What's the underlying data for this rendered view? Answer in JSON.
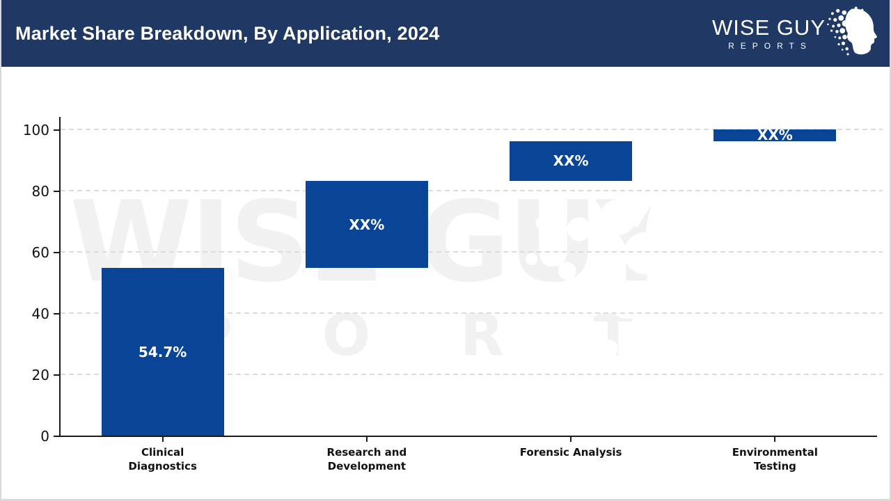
{
  "header": {
    "title": "Market Share Breakdown, By Application, 2024",
    "bg_color": "#203864",
    "logo": {
      "line1": "WISE GUY",
      "line2": "REPORTS"
    }
  },
  "watermark": {
    "line1": "WISE GUY",
    "line2": "P O R T S"
  },
  "chart_data": {
    "type": "bar",
    "subtype": "waterfall-stacked-to-100",
    "title": "Market Share Breakdown, By Application, 2024",
    "categories": [
      "Clinical Diagnostics",
      "Research and Development",
      "Forensic Analysis",
      "Environmental Testing"
    ],
    "category_label_lines": [
      [
        "Clinical",
        "Diagnostics"
      ],
      [
        "Research and",
        "Development"
      ],
      [
        "Forensic Analysis"
      ],
      [
        "Environmental",
        "Testing"
      ]
    ],
    "values": [
      54.7,
      28.5,
      13.0,
      3.8
    ],
    "segment_starts": [
      0,
      54.7,
      83.2,
      96.2
    ],
    "segment_ends": [
      54.7,
      83.2,
      96.2,
      100
    ],
    "bar_labels": [
      "54.7%",
      "XX%",
      "XX%",
      "XX%"
    ],
    "ylim": [
      0,
      100
    ],
    "yticks": [
      0,
      20,
      40,
      60,
      80,
      100
    ],
    "grid": "horizontal-dashed",
    "legend": "none",
    "bar_color": "#0a4496",
    "bar_label_color": "#ffffff",
    "axis_color": "#1a1a1a",
    "grid_color": "#dcdcdc"
  }
}
